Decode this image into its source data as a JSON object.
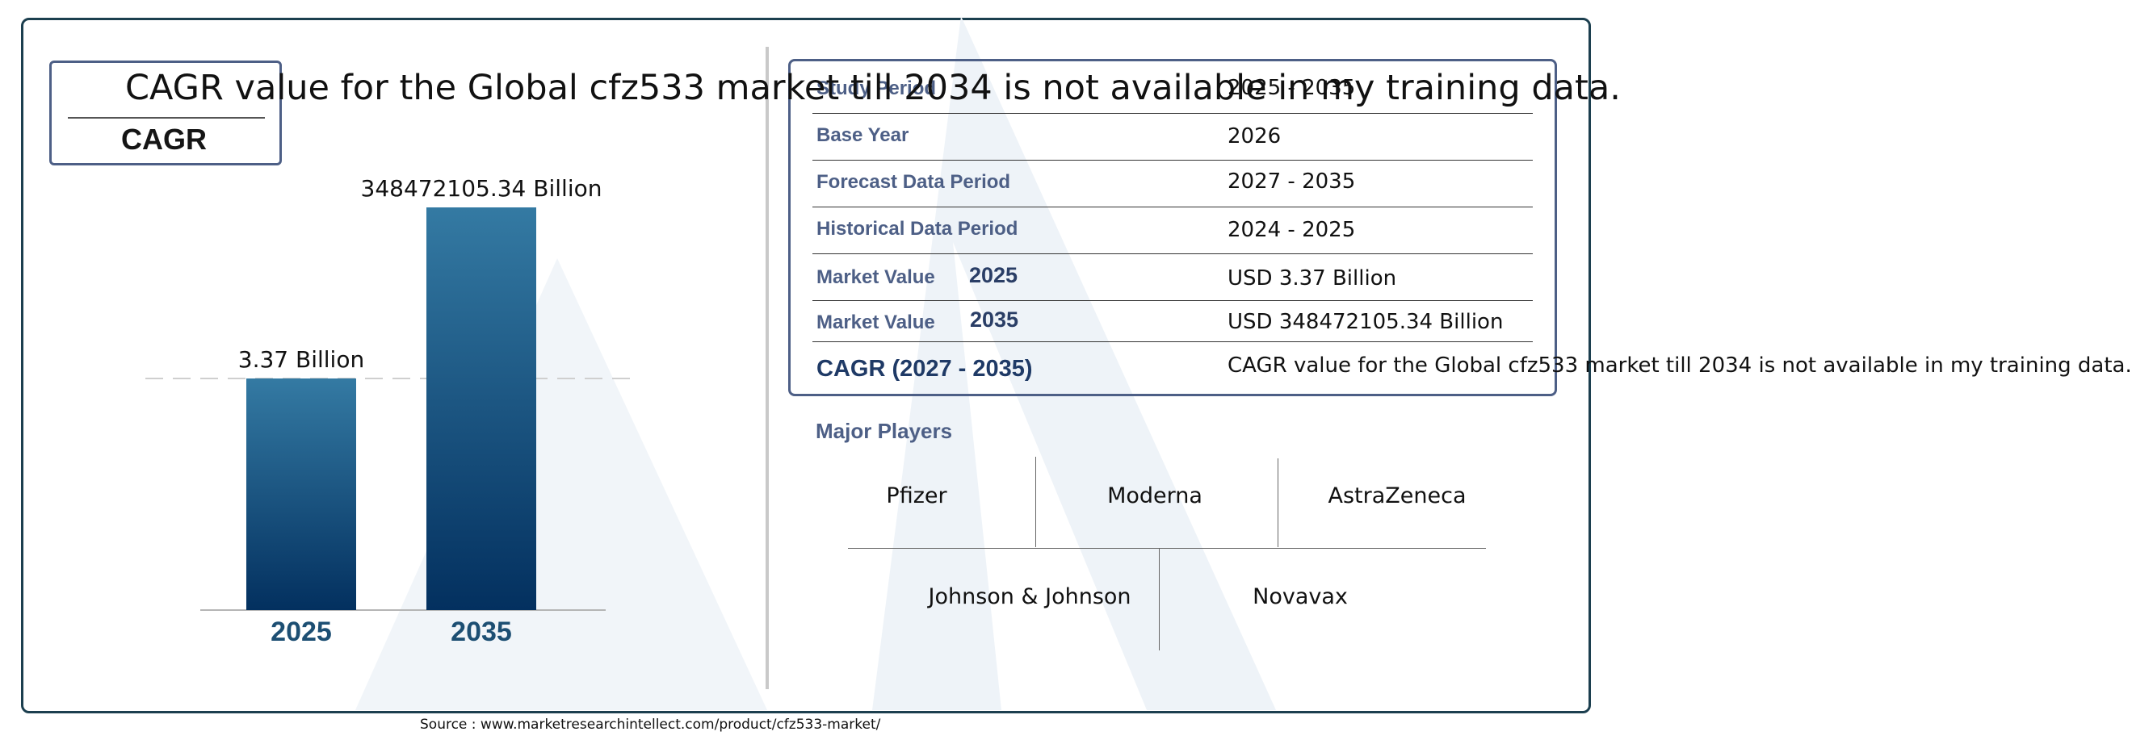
{
  "headline": "CAGR value for the Global cfz533 market till 2034 is not available in my training data.",
  "cagr_box_label": "CAGR",
  "chart_data": {
    "type": "bar",
    "categories": [
      "2025",
      "2035"
    ],
    "values": [
      3.37,
      348472105.34
    ],
    "data_labels": [
      "3.37 Billion",
      "348472105.34 Billion"
    ],
    "title": "",
    "xlabel": "",
    "ylabel": "",
    "bar_color_top": "#347aa3",
    "bar_color_bottom": "#03305f",
    "category_label_color": "#1d4f73"
  },
  "info_table": {
    "rows": [
      {
        "label": "Study Period",
        "year": "",
        "value": "2025 - 2035"
      },
      {
        "label": "Base Year",
        "year": "",
        "value": "2026"
      },
      {
        "label": "Forecast Data Period",
        "year": "",
        "value": "2027 - 2035"
      },
      {
        "label": "Historical Data Period",
        "year": "",
        "value": "2024 - 2025"
      },
      {
        "label": "Market Value",
        "year": "2025",
        "value": "USD 3.37 Billion"
      },
      {
        "label": "Market Value",
        "year": "2035",
        "value": "USD 348472105.34 Billion"
      }
    ],
    "cagr_label": "CAGR (2027 - 2035)",
    "cagr_value": "CAGR value for the Global cfz533 market till 2034 is not available in my training data."
  },
  "major_players": {
    "title": "Major Players",
    "names": [
      "Pfizer",
      "Moderna",
      "AstraZeneca",
      "Johnson & Johnson",
      "Novavax"
    ]
  },
  "source": "Source : www.marketresearchintellect.com/product/cfz533-market/",
  "colors": {
    "frame": "#1c3f4f",
    "accent": "#4d5f86",
    "watermark": "#eef3f8"
  }
}
